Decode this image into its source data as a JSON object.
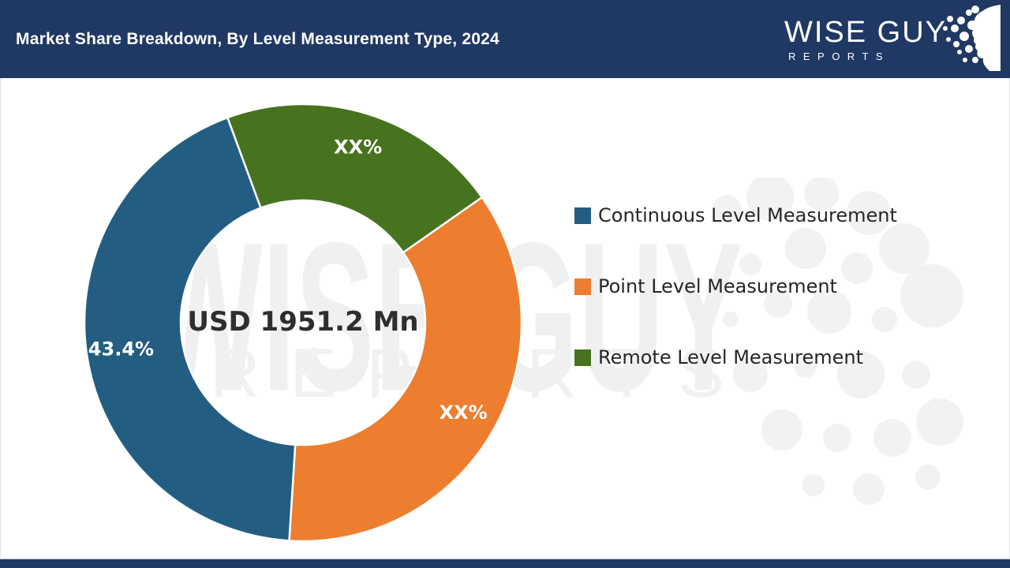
{
  "header": {
    "title": "Market Share Breakdown, By Level Measurement Type, 2024",
    "logo_line1": "WISE GUY",
    "logo_line2": "REPORTS"
  },
  "chart_data": {
    "type": "pie",
    "subtype": "donut",
    "title": "Market Share Breakdown, By Level Measurement Type, 2024",
    "center_label": "USD 1951.2 Mn",
    "total_value": "USD 1951.2 Mn",
    "donut_hole_ratio": 0.555,
    "angle_reference": "degrees clockwise from 12 o'clock",
    "segments": [
      {
        "name": "Continuous Level Measurement",
        "label": "43.4%",
        "pct": 43.4,
        "pct_is_estimated": false,
        "color": "#235E82",
        "start_deg": 183.6,
        "end_deg": 339.8
      },
      {
        "name": "Remote Level Measurement",
        "label": "XX%",
        "pct": 20.9,
        "pct_is_estimated": true,
        "color": "#47731F",
        "start_deg": 339.8,
        "end_deg": 415.0
      },
      {
        "name": "Point Level Measurement",
        "label": "XX%",
        "pct": 35.7,
        "pct_is_estimated": true,
        "color": "#ED7D2F",
        "start_deg": 55.0,
        "end_deg": 183.6
      }
    ],
    "legend_position": "right",
    "legend": [
      {
        "label": "Continuous Level Measurement",
        "color": "#235E82"
      },
      {
        "label": "Point Level Measurement",
        "color": "#ED7D2F"
      },
      {
        "label": "Remote Level Measurement",
        "color": "#47731F"
      }
    ]
  },
  "watermark": {
    "line1": "WISE GUY",
    "line2": "REPORTS"
  },
  "colors": {
    "header_bg": "#203864",
    "footer_bg": "#203864",
    "blue": "#235E82",
    "orange": "#ED7D2F",
    "green": "#47731F",
    "text_dark": "#2e2e2e",
    "watermark": "#f0f0f0",
    "hairline": "#cfcfcf"
  }
}
